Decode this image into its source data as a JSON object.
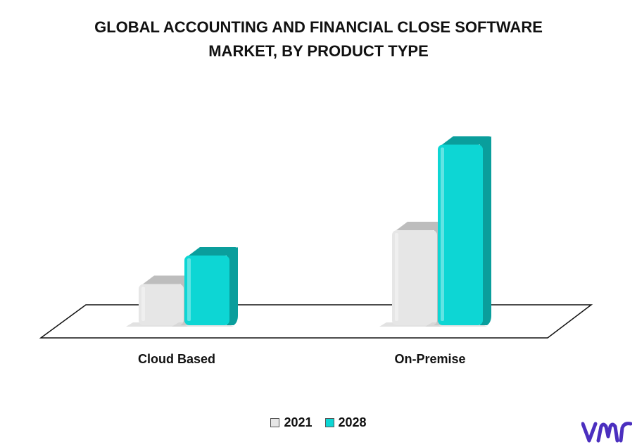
{
  "title_line1": "GLOBAL ACCOUNTING AND FINANCIAL CLOSE SOFTWARE",
  "title_line2": "MARKET, BY PRODUCT TYPE",
  "colors": {
    "series_2021_front": "#e6e6e6",
    "series_2021_side": "#bdbdbd",
    "series_2028_front": "#0dd6d4",
    "series_2028_side": "#0a9e9c",
    "logo": "#4b2fbf"
  },
  "logo_icon": "vmr-logo-icon",
  "chart_data": {
    "type": "bar",
    "categories": [
      "Cloud Based",
      "On-Premise"
    ],
    "series": [
      {
        "name": "2021",
        "values": [
          1.3,
          3.0
        ]
      },
      {
        "name": "2028",
        "values": [
          2.2,
          5.7
        ]
      }
    ],
    "xlabel": "",
    "ylabel": "",
    "ylim": [
      0,
      6
    ],
    "grid": false,
    "legend": "bottom"
  }
}
